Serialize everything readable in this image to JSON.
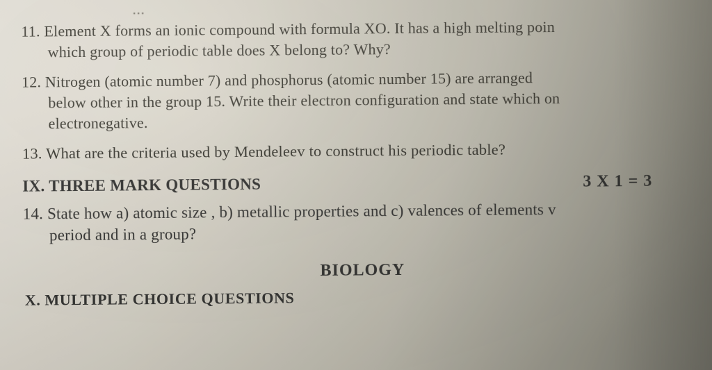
{
  "cutoff_top": "…",
  "q11": {
    "num": "11.",
    "line1": "Element X forms an ionic compound with formula XO. It has a high melting poin",
    "line2": "which group of periodic table does X belong to? Why?"
  },
  "q12": {
    "num": "12.",
    "line1": "Nitrogen (atomic number 7) and phosphorus (atomic number 15) are arranged",
    "line2": "below other in the group 15. Write their electron configuration and state which on",
    "line3": "electronegative."
  },
  "q13": {
    "num": "13.",
    "line1": "What are the criteria used by Mendeleev to construct his periodic table?"
  },
  "section_title": "IX. THREE MARK QUESTIONS",
  "section_marks": "3 X 1 = 3",
  "q14": {
    "num": "14.",
    "line1": "State how a) atomic size , b) metallic properties and c) valences of elements v",
    "line2": "period and in a group?"
  },
  "subject": "BIOLOGY",
  "cutoff_bottom": "X. MULTIPLE CHOICE QUESTIONS"
}
